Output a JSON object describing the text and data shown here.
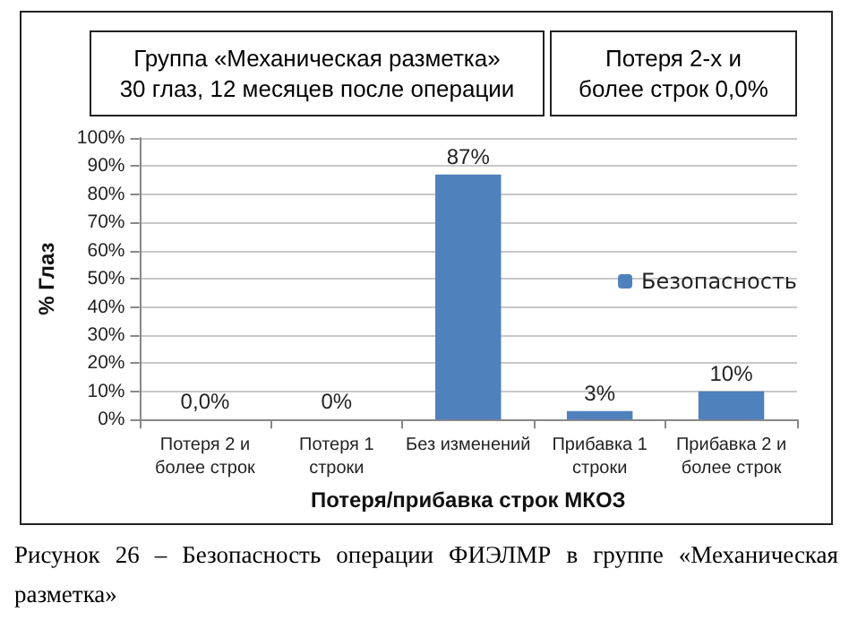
{
  "chart_data": {
    "type": "bar",
    "title": "Группа «Механическая разметка»",
    "subtitle": "30 глаз, 12 месяцев после операции",
    "annotations": [
      "Потеря 2-х и более строк 0,0%",
      "Рисунок 26 – Безопасность операции ФИЭЛМР в группе «Механическая разметка»"
    ],
    "xlabel": "Потеря/прибавка строк МКОЗ",
    "ylabel": "% Глаз",
    "categories": [
      "Потеря 2 и более строк",
      "Потеря 1 строки",
      "Без изменений",
      "Прибавка 1 строки",
      "Прибавка 2 и более строк"
    ],
    "series": [
      {
        "name": "Безопасность",
        "color": "#4f81bd",
        "values": [
          0,
          0,
          87,
          3,
          10
        ],
        "value_labels": [
          "0,0%",
          "0%",
          "87%",
          "3%",
          "10%"
        ]
      }
    ],
    "ylim": [
      0,
      100
    ],
    "yticks": [
      {
        "value": 0,
        "label": "0%"
      },
      {
        "value": 10,
        "label": "10%"
      },
      {
        "value": 20,
        "label": "20%"
      },
      {
        "value": 30,
        "label": "30%"
      },
      {
        "value": 40,
        "label": "40%"
      },
      {
        "value": 50,
        "label": "50%"
      },
      {
        "value": 60,
        "label": "60%"
      },
      {
        "value": 70,
        "label": "70%"
      },
      {
        "value": 80,
        "label": "80%"
      },
      {
        "value": 90,
        "label": "90%"
      },
      {
        "value": 100,
        "label": "100%"
      }
    ],
    "grid": "y",
    "legend": "right"
  }
}
